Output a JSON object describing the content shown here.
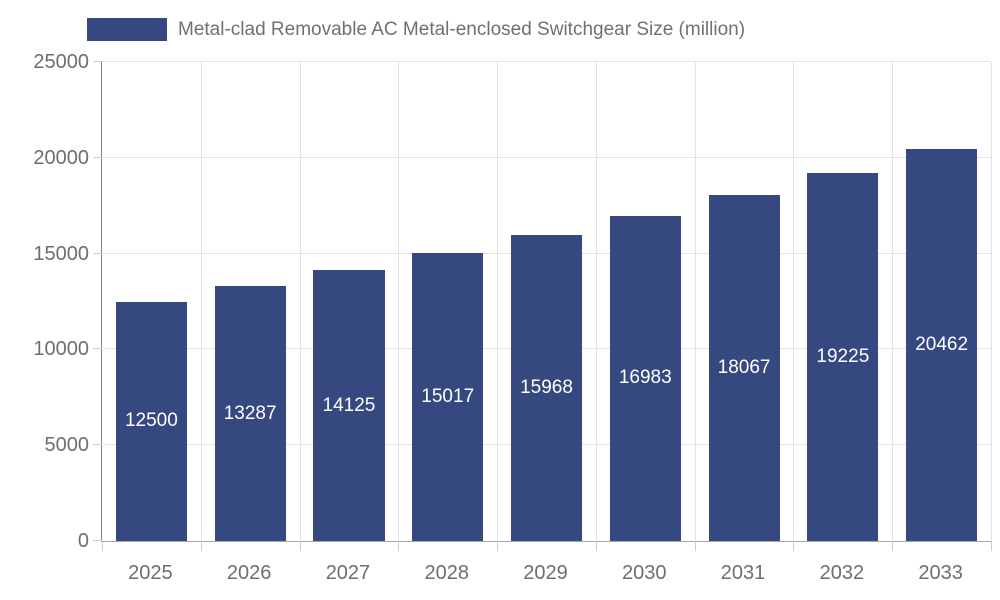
{
  "legend": {
    "label": "Metal-clad Removable AC Metal-enclosed Switchgear Size (million)"
  },
  "chart_data": {
    "type": "bar",
    "title": "Metal-clad Removable AC Metal-enclosed Switchgear Size (million)",
    "categories": [
      "2025",
      "2026",
      "2027",
      "2028",
      "2029",
      "2030",
      "2031",
      "2032",
      "2033"
    ],
    "values": [
      12500,
      13287,
      14125,
      15017,
      15968,
      16983,
      18067,
      19225,
      20462
    ],
    "xlabel": "",
    "ylabel": "",
    "ylim": [
      0,
      25000
    ],
    "yticks": [
      0,
      5000,
      10000,
      15000,
      20000,
      25000
    ],
    "grid": true,
    "legend_position": "top-left",
    "colors": {
      "bar": "#35487f",
      "value_label": "#ffffff",
      "axis_text": "#6e6e6e",
      "legend_text": "#707070",
      "gridline": "#e3e3e3",
      "y_axis_line": "#7f7f7f",
      "x_axis_line": "#a6a6a6"
    }
  }
}
